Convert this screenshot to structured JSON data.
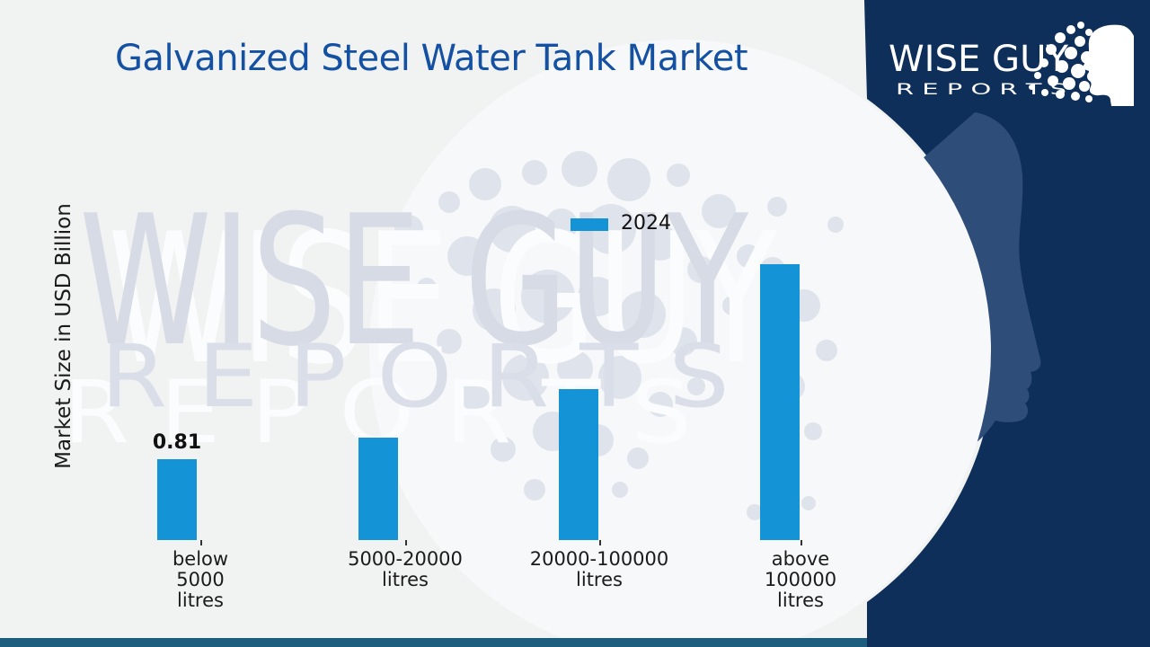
{
  "page_title": "Galvanized Steel Water Tank Market",
  "y_axis_label": "Market Size in USD Billion",
  "legend": {
    "label": "2024"
  },
  "logo": {
    "line1": "WISE GUY",
    "line2": "R E P O R T S"
  },
  "watermark": {
    "line1": "WISE GUY",
    "line2": "R E P O R T S"
  },
  "chart_data": {
    "type": "bar",
    "title": "Galvanized Steel Water Tank Market",
    "ylabel": "Market Size in USD Billion",
    "categories": [
      "below 5000 litres",
      "5000-20000 litres",
      "20000-100000 litres",
      "above 100000 litres"
    ],
    "category_label_lines": [
      [
        "below",
        "5000",
        "litres"
      ],
      [
        "5000-20000",
        "litres"
      ],
      [
        "20000-100000",
        "litres"
      ],
      [
        "above",
        "100000",
        "litres"
      ]
    ],
    "series": [
      {
        "name": "2024",
        "values": [
          0.81,
          1.03,
          1.51,
          2.76
        ]
      }
    ],
    "bar_value_labels": [
      "0.81",
      "",
      "",
      ""
    ],
    "bar_color": "#1493d7",
    "ylim": [
      0,
      3
    ],
    "grid": false,
    "axes_visible": false,
    "legend_entries": [
      "2024"
    ],
    "legend_position": "upper center-right"
  },
  "colors": {
    "background": "#f1f2f2",
    "accent_bar_blue": "#1493d7",
    "title_blue": "#1551a3",
    "navy_shape": "#0f2f5b",
    "navy_face_silhouette": "#2f4d79",
    "light_circle": "#f7f8fa",
    "watermark_gray": "#d7dbe5",
    "watermark_blob_gray": "#dfe3ec",
    "footer_teal": "#1d5d7d",
    "logo_white": "#ffffff",
    "text_dark": "#1a1a1a"
  }
}
